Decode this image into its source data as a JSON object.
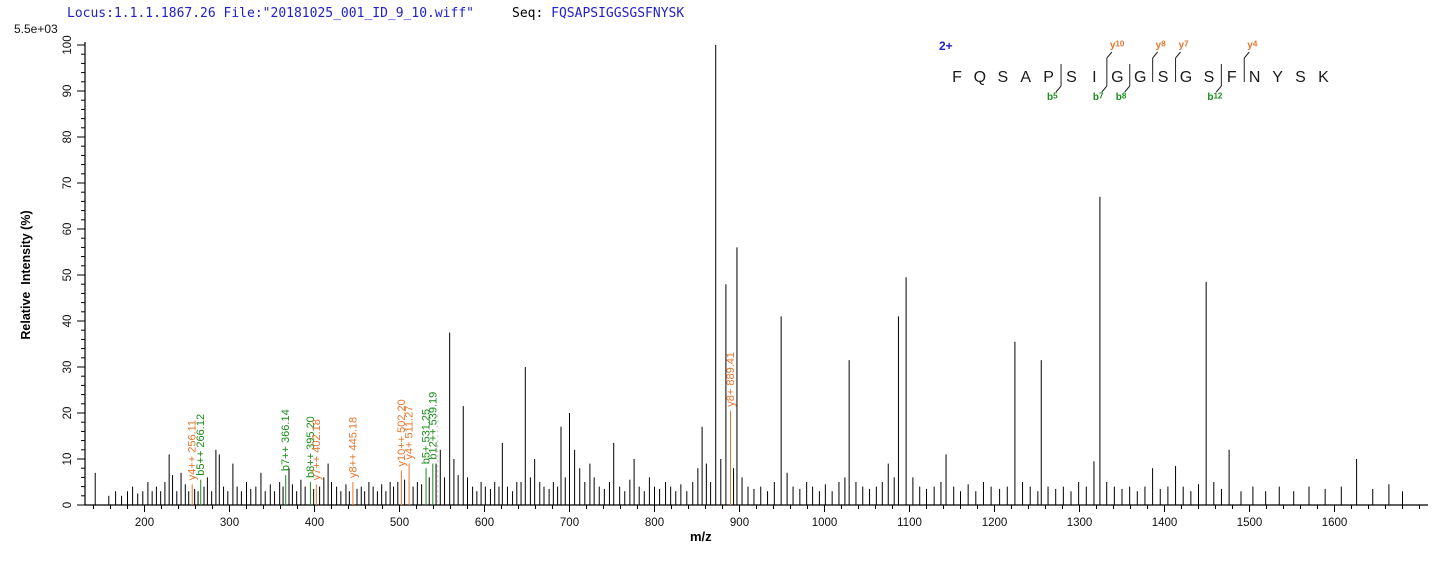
{
  "header": {
    "locus_file": "Locus:1.1.1.1867.26 File:\"20181025_001_ID_9_10.wiff\"",
    "seq_label": "Seq: ",
    "seq_value": "FQSAPSIGGSGSFNYSK"
  },
  "scale_label": "5.5e+03",
  "colors": {
    "blue": "#2121c8",
    "y_ion": "#e5762d",
    "b_ion": "#1a8c1a",
    "peak": "#000000",
    "axis": "#000000",
    "dashed": "#bfbfbf",
    "letter": "#1a1a1a"
  },
  "sequence_panel": {
    "charge": "2+",
    "residues": "FQSAPSIGGSGSFNYSK",
    "markers": [
      {
        "after": 4,
        "b": "5"
      },
      {
        "after": 6,
        "y": "10",
        "b": "7"
      },
      {
        "after": 7,
        "b": "8"
      },
      {
        "after": 8,
        "y": "8"
      },
      {
        "after": 9,
        "y": "7"
      },
      {
        "after": 11,
        "b": "12"
      },
      {
        "after": 12,
        "y": "4"
      }
    ]
  },
  "chart_data": {
    "type": "bar",
    "subtype": "mass-spectrum-sticks",
    "xlabel": "m/z",
    "ylabel": "Relative  Intensity (%)",
    "xlim": [
      130,
      1710
    ],
    "ylim": [
      0,
      100
    ],
    "x_major_ticks": [
      200,
      300,
      400,
      500,
      600,
      700,
      800,
      900,
      1000,
      1100,
      1200,
      1300,
      1400,
      1500,
      1600
    ],
    "x_minor_step": 20,
    "y_major_step": 10,
    "y_minor_step": 2,
    "grid": "off",
    "peaks": [
      [
        142,
        7
      ],
      [
        158,
        2
      ],
      [
        166,
        3
      ],
      [
        173,
        2
      ],
      [
        180,
        3
      ],
      [
        186,
        4
      ],
      [
        192,
        2.5
      ],
      [
        198,
        3
      ],
      [
        204,
        5
      ],
      [
        209,
        3
      ],
      [
        214,
        4
      ],
      [
        219,
        3
      ],
      [
        224,
        5
      ],
      [
        229,
        11
      ],
      [
        233,
        6.5
      ],
      [
        238,
        3
      ],
      [
        243,
        7
      ],
      [
        248,
        4.5
      ],
      [
        252,
        3
      ],
      [
        259,
        3.5
      ],
      [
        263,
        3
      ],
      [
        270,
        4
      ],
      [
        274,
        6
      ],
      [
        279,
        3
      ],
      [
        284,
        12
      ],
      [
        288,
        11
      ],
      [
        293,
        4
      ],
      [
        298,
        3
      ],
      [
        304,
        9
      ],
      [
        309,
        4
      ],
      [
        314,
        3
      ],
      [
        320,
        5
      ],
      [
        325,
        3.5
      ],
      [
        331,
        4
      ],
      [
        337,
        7
      ],
      [
        342,
        3
      ],
      [
        348,
        4.5
      ],
      [
        353,
        3
      ],
      [
        359,
        5
      ],
      [
        363,
        4
      ],
      [
        370,
        8
      ],
      [
        374,
        4.5
      ],
      [
        379,
        3
      ],
      [
        384,
        5.5
      ],
      [
        389,
        4
      ],
      [
        399,
        3.5
      ],
      [
        406,
        4
      ],
      [
        411,
        6
      ],
      [
        416,
        9
      ],
      [
        420,
        5
      ],
      [
        426,
        4
      ],
      [
        431,
        3
      ],
      [
        437,
        4.5
      ],
      [
        441,
        3
      ],
      [
        450,
        3.5
      ],
      [
        455,
        4
      ],
      [
        459,
        3
      ],
      [
        464,
        5
      ],
      [
        469,
        4
      ],
      [
        474,
        3
      ],
      [
        479,
        4.5
      ],
      [
        484,
        3
      ],
      [
        489,
        5
      ],
      [
        493,
        4
      ],
      [
        498,
        5
      ],
      [
        506,
        5.5
      ],
      [
        516,
        4
      ],
      [
        521,
        5
      ],
      [
        526,
        4.5
      ],
      [
        535,
        6
      ],
      [
        543,
        9
      ],
      [
        548,
        12
      ],
      [
        553,
        6
      ],
      [
        559,
        37.5
      ],
      [
        564,
        10
      ],
      [
        569,
        6.5
      ],
      [
        575,
        21.5
      ],
      [
        580,
        6
      ],
      [
        586,
        4
      ],
      [
        591,
        3
      ],
      [
        596,
        5
      ],
      [
        601,
        4
      ],
      [
        607,
        3.5
      ],
      [
        612,
        5
      ],
      [
        617,
        4
      ],
      [
        621,
        13.5
      ],
      [
        627,
        4
      ],
      [
        633,
        3
      ],
      [
        638,
        5
      ],
      [
        643,
        5
      ],
      [
        648,
        30
      ],
      [
        654,
        6
      ],
      [
        659,
        10
      ],
      [
        665,
        5
      ],
      [
        670,
        4
      ],
      [
        676,
        3.5
      ],
      [
        681,
        5
      ],
      [
        686,
        4
      ],
      [
        690,
        17
      ],
      [
        695,
        6
      ],
      [
        700,
        20
      ],
      [
        706,
        12
      ],
      [
        712,
        8
      ],
      [
        718,
        5
      ],
      [
        724,
        9
      ],
      [
        729,
        6
      ],
      [
        735,
        4
      ],
      [
        741,
        3.5
      ],
      [
        747,
        5
      ],
      [
        752,
        13.5
      ],
      [
        759,
        4
      ],
      [
        765,
        3
      ],
      [
        771,
        5.5
      ],
      [
        776,
        10
      ],
      [
        782,
        4
      ],
      [
        788,
        3
      ],
      [
        794,
        6
      ],
      [
        800,
        4
      ],
      [
        806,
        3.5
      ],
      [
        813,
        5
      ],
      [
        819,
        4
      ],
      [
        825,
        3
      ],
      [
        831,
        4.5
      ],
      [
        838,
        3
      ],
      [
        845,
        5
      ],
      [
        851,
        8
      ],
      [
        856,
        17
      ],
      [
        861,
        9
      ],
      [
        866,
        5
      ],
      [
        872,
        100
      ],
      [
        878,
        10
      ],
      [
        884,
        48
      ],
      [
        893,
        8
      ],
      [
        897,
        56
      ],
      [
        903,
        6
      ],
      [
        910,
        4
      ],
      [
        917,
        3.5
      ],
      [
        925,
        4
      ],
      [
        933,
        3
      ],
      [
        941,
        5
      ],
      [
        949,
        41
      ],
      [
        956,
        7
      ],
      [
        963,
        4
      ],
      [
        971,
        3.5
      ],
      [
        979,
        5
      ],
      [
        986,
        4
      ],
      [
        994,
        3
      ],
      [
        1001,
        4.5
      ],
      [
        1009,
        3
      ],
      [
        1017,
        5
      ],
      [
        1024,
        6
      ],
      [
        1029,
        31.5
      ],
      [
        1037,
        5
      ],
      [
        1045,
        4
      ],
      [
        1053,
        3.5
      ],
      [
        1061,
        4
      ],
      [
        1068,
        5
      ],
      [
        1075,
        9
      ],
      [
        1082,
        6
      ],
      [
        1087,
        41
      ],
      [
        1096,
        49.5
      ],
      [
        1104,
        6
      ],
      [
        1112,
        4
      ],
      [
        1120,
        3.5
      ],
      [
        1129,
        4
      ],
      [
        1137,
        5
      ],
      [
        1143,
        11
      ],
      [
        1152,
        4
      ],
      [
        1160,
        3
      ],
      [
        1169,
        4.5
      ],
      [
        1178,
        3
      ],
      [
        1187,
        5
      ],
      [
        1196,
        4
      ],
      [
        1206,
        3.5
      ],
      [
        1215,
        4
      ],
      [
        1224,
        35.5
      ],
      [
        1233,
        5
      ],
      [
        1242,
        4
      ],
      [
        1251,
        3
      ],
      [
        1255,
        31.5
      ],
      [
        1263,
        4
      ],
      [
        1272,
        3.5
      ],
      [
        1281,
        4
      ],
      [
        1290,
        3
      ],
      [
        1299,
        5
      ],
      [
        1308,
        4
      ],
      [
        1317,
        9.5
      ],
      [
        1324,
        67
      ],
      [
        1332,
        5
      ],
      [
        1341,
        4
      ],
      [
        1350,
        3.5
      ],
      [
        1359,
        4
      ],
      [
        1368,
        3
      ],
      [
        1377,
        4
      ],
      [
        1386,
        8
      ],
      [
        1395,
        3.5
      ],
      [
        1404,
        4
      ],
      [
        1413,
        8.5
      ],
      [
        1422,
        4
      ],
      [
        1431,
        3
      ],
      [
        1440,
        4.5
      ],
      [
        1449,
        48.5
      ],
      [
        1458,
        5
      ],
      [
        1467,
        3.5
      ],
      [
        1476,
        12
      ],
      [
        1490,
        3
      ],
      [
        1504,
        4
      ],
      [
        1519,
        3
      ],
      [
        1535,
        4
      ],
      [
        1552,
        3
      ],
      [
        1570,
        4
      ],
      [
        1589,
        3.5
      ],
      [
        1608,
        4
      ],
      [
        1626,
        10
      ],
      [
        1645,
        3.5
      ],
      [
        1664,
        4.5
      ],
      [
        1680,
        3
      ]
    ],
    "annotated_peaks": [
      {
        "label": "y4++ 256.11",
        "mz": 256.11,
        "pct": 4.5,
        "series": "y"
      },
      {
        "label": "b5++ 266.12",
        "mz": 266.12,
        "pct": 5.5,
        "series": "b"
      },
      {
        "label": "b7++ 366.14",
        "mz": 366.14,
        "pct": 6.5,
        "series": "b"
      },
      {
        "label": "b8++ 395.20",
        "mz": 395.2,
        "pct": 5,
        "series": "b"
      },
      {
        "label": "y7++ 402.18",
        "mz": 402.18,
        "pct": 4.5,
        "series": "y"
      },
      {
        "label": "y8++ 445.18",
        "mz": 445.18,
        "pct": 5,
        "series": "y"
      },
      {
        "label": "y10++ 502.20",
        "mz": 502.2,
        "pct": 7.5,
        "series": "y"
      },
      {
        "label": "y4+ 511.27",
        "mz": 511.27,
        "pct": 9,
        "series": "y"
      },
      {
        "label": "b5+ 531.25",
        "mz": 531.25,
        "pct": 8,
        "series": "b"
      },
      {
        "label": "b12++ 539.19",
        "mz": 539.19,
        "pct": 9,
        "series": "b"
      },
      {
        "label": "y8+ 889.41",
        "mz": 889.41,
        "pct": 20.5,
        "series": "y"
      }
    ],
    "dashed_marker": {
      "mz": 545,
      "pct": 19.5
    }
  }
}
